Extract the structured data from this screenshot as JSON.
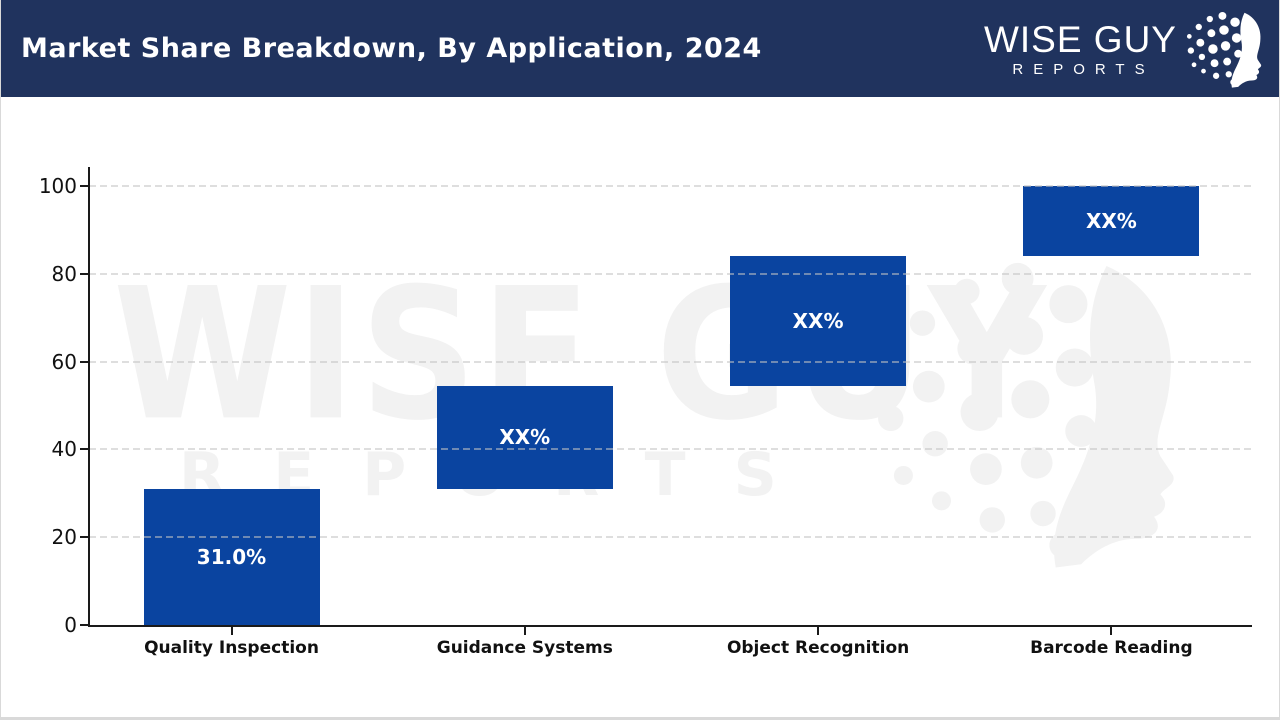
{
  "header": {
    "title": "Market Share Breakdown, By Application, 2024",
    "logo_line1": "WISE GUY",
    "logo_line2": "REPORTS"
  },
  "watermark": {
    "line1": "WISE GUY",
    "line2": "REPORTS"
  },
  "chart_data": {
    "type": "bar",
    "variant": "waterfall",
    "title": "Market Share Breakdown, By Application, 2024",
    "categories": [
      "Quality Inspection",
      "Guidance Systems",
      "Object Recognition",
      "Barcode Reading"
    ],
    "segments": [
      {
        "category": "Quality Inspection",
        "start": 0,
        "end": 31,
        "label": "31.0%"
      },
      {
        "category": "Guidance Systems",
        "start": 31,
        "end": 54.5,
        "label": "XX%"
      },
      {
        "category": "Object Recognition",
        "start": 54.5,
        "end": 84,
        "label": "XX%"
      },
      {
        "category": "Barcode Reading",
        "start": 84,
        "end": 100,
        "label": "XX%"
      }
    ],
    "xlabel": "",
    "ylabel": "",
    "ylim": [
      0,
      100
    ],
    "yticks": [
      0,
      20,
      40,
      60,
      80,
      100
    ],
    "grid": "horizontal-dashed",
    "legend": "none"
  },
  "colors": {
    "header_bg": "#20335e",
    "bar": "#0a44a0",
    "bar_label": "#ffffff",
    "axis": "#1a1a1a",
    "grid": "#c3c3c3",
    "watermark": "#f2f2f2",
    "border": "#d9d9d9"
  }
}
